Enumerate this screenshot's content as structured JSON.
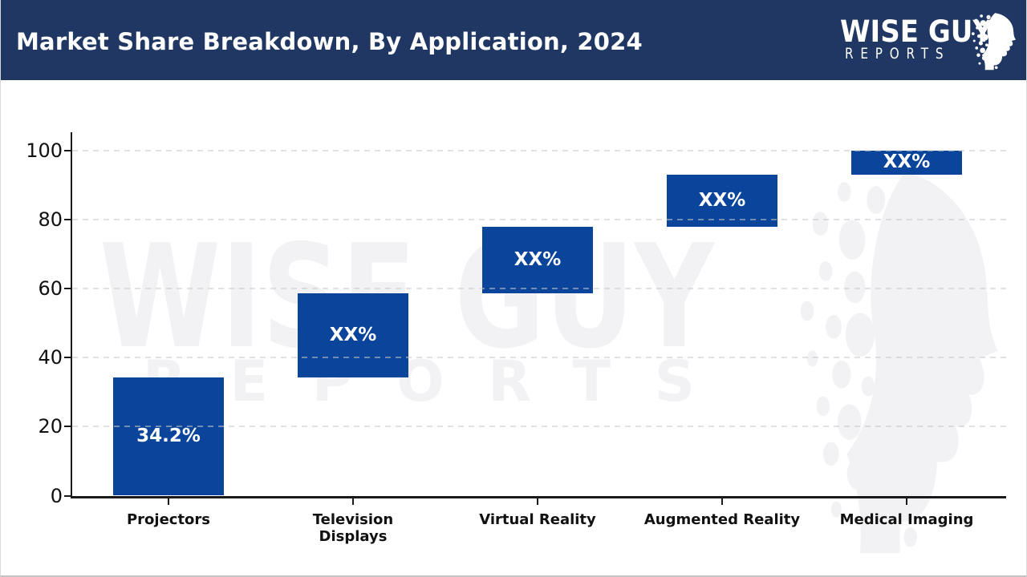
{
  "header": {
    "title": "Market Share Breakdown, By Application, 2024",
    "bg_color": "#203763",
    "logo": {
      "line1": "WISE GUY",
      "line2": "REPORTS"
    }
  },
  "watermark": {
    "line1": "WISE GUY",
    "line2": "REPORTS",
    "color": "#f2f2f4"
  },
  "chart_data": {
    "type": "bar",
    "subtype": "waterfall",
    "title": "Market Share Breakdown, By Application, 2024",
    "categories": [
      "Projectors",
      "Television\nDisplays",
      "Virtual Reality",
      "Augmented Reality",
      "Medical Imaging"
    ],
    "series": [
      {
        "name": "Market Share (%)",
        "values": [
          34.2,
          24.4,
          19.4,
          15.0,
          7.0
        ],
        "cumulative_start": [
          0,
          34.2,
          58.6,
          78.0,
          93.0
        ],
        "cumulative_end": [
          34.2,
          58.6,
          78.0,
          93.0,
          100.0
        ]
      }
    ],
    "bar_labels": [
      "34.2%",
      "XX%",
      "XX%",
      "XX%",
      "XX%"
    ],
    "xlabel": "",
    "ylabel": "",
    "ylim": [
      0,
      100
    ],
    "yticks": [
      0,
      20,
      40,
      60,
      80,
      100
    ],
    "grid": "horizontal-dashed",
    "legend": "none",
    "bar_color": "#0a459b",
    "bar_label_color": "#ffffff",
    "axis_color": "#1a1a1a",
    "grid_color": "#dcdcdc"
  }
}
